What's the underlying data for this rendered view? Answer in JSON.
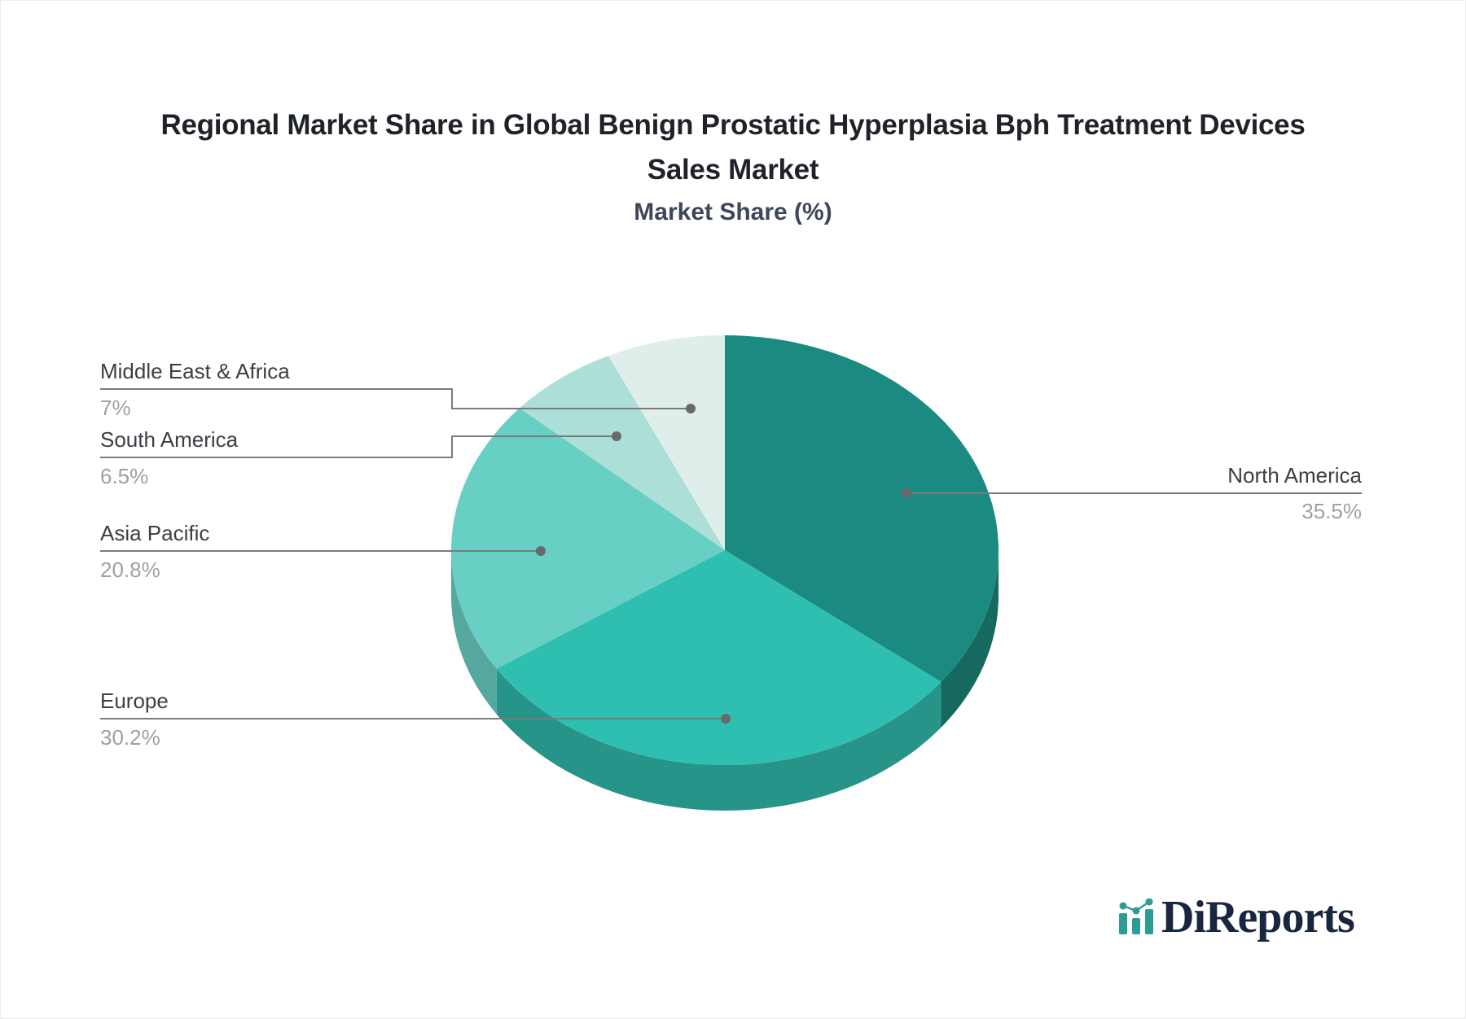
{
  "chart_data": {
    "type": "pie",
    "title": "Regional Market Share in Global Benign Prostatic Hyperplasia Bph Treatment Devices Sales Market",
    "title_lines": [
      "Regional Market Share in Global Benign Prostatic Hyperplasia Bph Treatment Devices",
      "Sales Market"
    ],
    "subtitle": "Market Share (%)",
    "unit": "%",
    "start_angle_deg": 0,
    "clockwise": true,
    "effect_3d": true,
    "series": [
      {
        "name": "North America",
        "value": 35.5,
        "label": "35.5%",
        "color": "#1B8A80",
        "side_color": "#15695E"
      },
      {
        "name": "Europe",
        "value": 30.2,
        "label": "30.2%",
        "color": "#2FBFB0",
        "side_color": "#27948A"
      },
      {
        "name": "Asia Pacific",
        "value": 20.8,
        "label": "20.8%",
        "color": "#68CFC4",
        "side_color": "#55A89D"
      },
      {
        "name": "South America",
        "value": 6.5,
        "label": "6.5%",
        "color": "#ABDFD7",
        "side_color": "#8BBDB4"
      },
      {
        "name": "Middle East & Africa",
        "value": 7,
        "label": "7%",
        "color": "#DFEEEA",
        "side_color": "#BCD1CB"
      }
    ]
  },
  "logo": {
    "text": "DiReports"
  },
  "colors": {
    "leader_line": "#7b7b7b",
    "leader_dot": "#696969",
    "title_text": "#1f2329",
    "subtitle_text": "#3d4759",
    "label_name": "#3a3f45",
    "label_value": "#9da1a5",
    "logo_text": "#18273f",
    "logo_icon": "#2E9C95"
  }
}
